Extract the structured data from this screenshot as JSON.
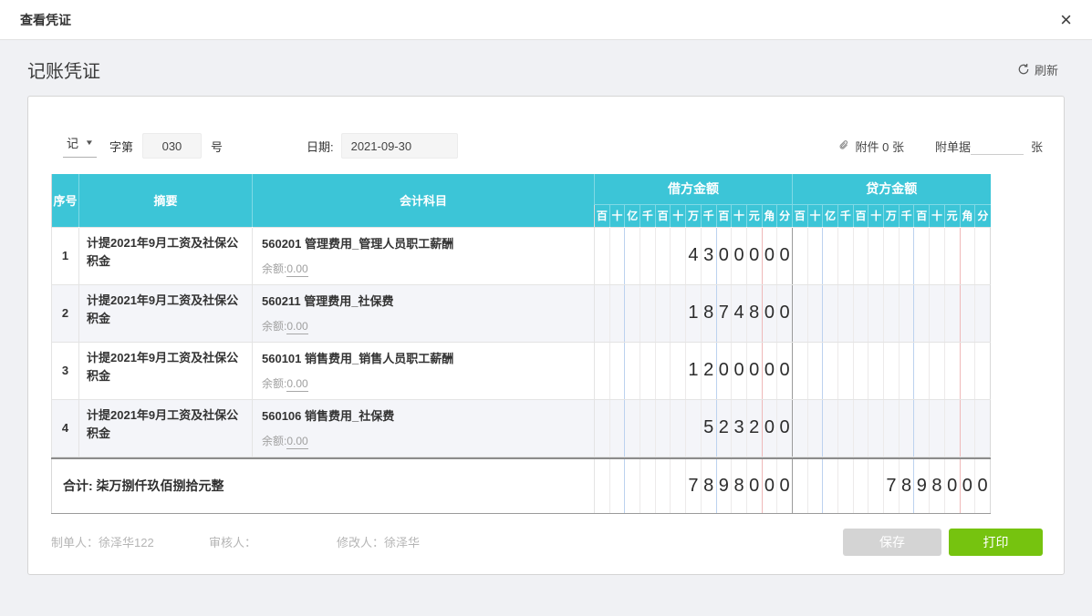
{
  "colors": {
    "accent_teal": "#3cc5d7",
    "print_green": "#76c30f",
    "grid_blue": "#bcd2ef",
    "grid_red": "#efb9b9",
    "page_bg": "#f0f1f4"
  },
  "topbar": {
    "title": "查看凭证"
  },
  "header": {
    "title": "记账凭证",
    "refresh": "刷新"
  },
  "form": {
    "voucher_word": "记",
    "word_label": "字第",
    "voucher_no": "030",
    "no_suffix": "号",
    "date_label": "日期:",
    "date_value": "2021-09-30",
    "attachment_text": "附件 0 张",
    "attach_doc_label": "附单据",
    "attach_doc_value": "",
    "attach_doc_unit": "张"
  },
  "table": {
    "col_seq": "序号",
    "col_summary": "摘要",
    "col_subject": "会计科目",
    "col_debit": "借方金额",
    "col_credit": "贷方金额",
    "digit_columns": [
      "百",
      "十",
      "亿",
      "千",
      "百",
      "十",
      "万",
      "千",
      "百",
      "十",
      "元",
      "角",
      "分"
    ],
    "balance_label": "余额:",
    "rows": [
      {
        "seq": "1",
        "summary": "计提2021年9月工资及社保公积金",
        "subject": "560201 管理费用_管理人员职工薪酬",
        "balance": "0.00",
        "debit": "4300000",
        "credit": ""
      },
      {
        "seq": "2",
        "summary": "计提2021年9月工资及社保公积金",
        "subject": "560211 管理费用_社保费",
        "balance": "0.00",
        "debit": "1874800",
        "credit": ""
      },
      {
        "seq": "3",
        "summary": "计提2021年9月工资及社保公积金",
        "subject": "560101 销售费用_销售人员职工薪酬",
        "balance": "0.00",
        "debit": "1200000",
        "credit": ""
      },
      {
        "seq": "4",
        "summary": "计提2021年9月工资及社保公积金",
        "subject": "560106 销售费用_社保费",
        "balance": "0.00",
        "debit": "523200",
        "credit": ""
      }
    ],
    "total": {
      "label": "合计: 柒万捌仟玖佰捌拾元整",
      "debit": "7898000",
      "credit": "7898000"
    }
  },
  "footer": {
    "preparer_label": "制单人：",
    "preparer": "徐泽华122",
    "reviewer_label": "审核人：",
    "reviewer": "",
    "modifier_label": "修改人：",
    "modifier": "徐泽华"
  },
  "actions": {
    "save": "保存",
    "print": "打印"
  }
}
